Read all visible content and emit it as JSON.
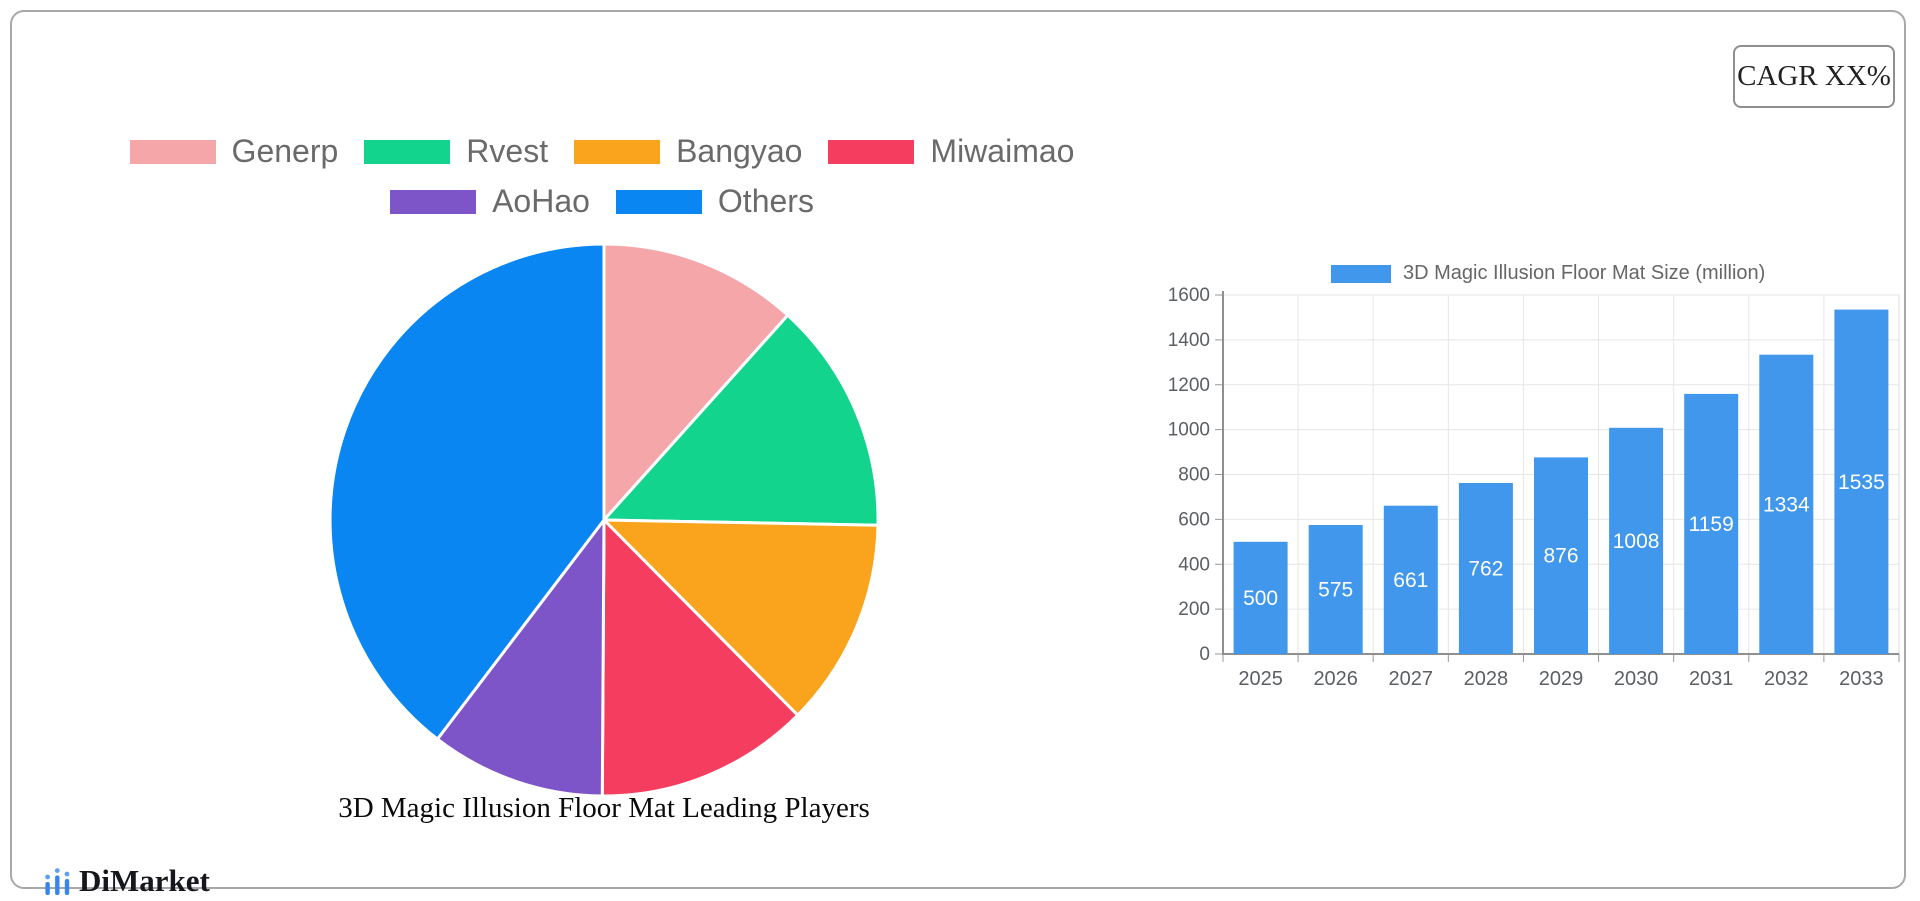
{
  "header": {
    "cagr_label": "CAGR XX%"
  },
  "footer": {
    "brand": "DiMarket"
  },
  "colors": {
    "card_border": "#a8a8a8",
    "legend_text": "#6a6a6a",
    "axis_text": "#5b5f63",
    "grid": "#e6e6e6",
    "axis_line": "#8f8f8f"
  },
  "chart_data": [
    {
      "type": "pie",
      "title": "3D Magic Illusion Floor Mat Leading Players",
      "labels": [
        "Generp",
        "Rvest",
        "Bangyao",
        "Miwaimao",
        "AoHao",
        "Others"
      ],
      "values": [
        11.7,
        13.6,
        12.2,
        12.6,
        10.3,
        39.6
      ],
      "colors": [
        "#F5A6A9",
        "#12D48D",
        "#FAA41E",
        "#F53E5F",
        "#7E55C8",
        "#0A86F2"
      ],
      "legend_rows": [
        [
          0,
          1,
          2,
          3
        ],
        [
          4,
          5
        ]
      ],
      "start_angle": "top",
      "direction": "clockwise",
      "values_are": "share percent estimated from slice angles"
    },
    {
      "type": "bar",
      "legend": "3D Magic Illusion Floor Mat Size (million)",
      "categories": [
        "2025",
        "2026",
        "2027",
        "2028",
        "2029",
        "2030",
        "2031",
        "2032",
        "2033"
      ],
      "values": [
        500,
        575,
        661,
        762,
        876,
        1008,
        1159,
        1334,
        1535
      ],
      "bar_color": "#4197EC",
      "ylim": [
        0,
        1600
      ],
      "yticks": [
        0,
        200,
        400,
        600,
        800,
        1000,
        1200,
        1400,
        1600
      ],
      "grid": true,
      "legend_position": "top",
      "value_labels": "white, centered inside bars"
    }
  ]
}
